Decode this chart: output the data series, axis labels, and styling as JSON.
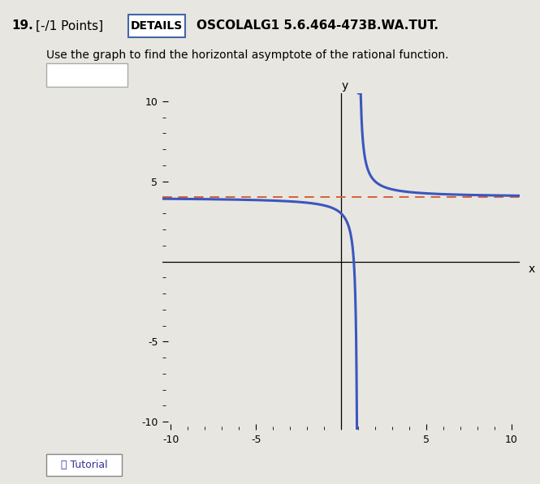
{
  "title_number": "19.",
  "title_points": "[-/1 Points]",
  "title_label": "DETAILS",
  "title_course": "OSCOLALG1 5.6.464-473B.WA.TUT.",
  "instruction": "Use the graph to find the horizontal asymptote of the rational function.",
  "xlim": [
    -10.5,
    10.5
  ],
  "ylim": [
    -10.5,
    10.5
  ],
  "xticks": [
    -10,
    -5,
    5,
    10
  ],
  "yticks": [
    -10,
    -5,
    5,
    10
  ],
  "xlabel": "x",
  "ylabel": "y",
  "horizontal_asymptote": 4.0,
  "vertical_asymptote": 1.0,
  "asymptote_color": "#d4603a",
  "curve_color": "#3a56c0",
  "background_color": "#e8e6e0",
  "plot_bg_color": "#e8e6e0",
  "fig_bg_color": "#e8e6e0"
}
